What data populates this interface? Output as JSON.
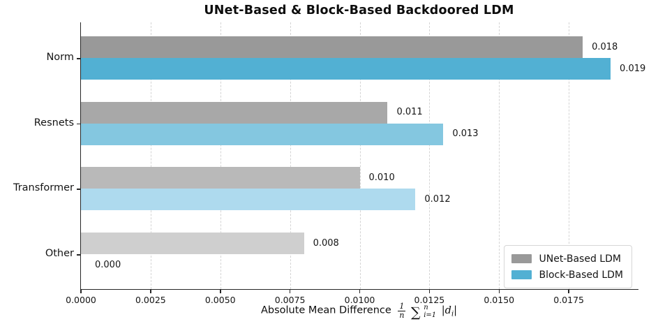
{
  "title": "UNet-Based & Block-Based Backdoored LDM",
  "chart_data": {
    "type": "bar",
    "orientation": "horizontal",
    "title": "UNet-Based & Block-Based Backdoored LDM",
    "categories": [
      "Norm",
      "Resnets",
      "Transformer",
      "Other"
    ],
    "series": [
      {
        "name": "UNet-Based LDM",
        "color": "#999999",
        "values": [
          0.018,
          0.011,
          0.01,
          0.008
        ],
        "bar_labels": [
          "0.018",
          "0.011",
          "0.010",
          "0.008"
        ],
        "bar_colors": [
          "#999999",
          "#a8a8a8",
          "#b9b9b9",
          "#cfcfcf"
        ]
      },
      {
        "name": "Block-Based LDM",
        "color": "#52b0d3",
        "values": [
          0.019,
          0.013,
          0.012,
          0.0
        ],
        "bar_labels": [
          "0.019",
          "0.013",
          "0.012",
          "0.000"
        ],
        "bar_colors": [
          "#52b0d3",
          "#84c7e0",
          "#aedaee",
          "#ffffff"
        ]
      }
    ],
    "x_ticks": [
      "0.0000",
      "0.0025",
      "0.0050",
      "0.0075",
      "0.0100",
      "0.0125",
      "0.0150",
      "0.0175"
    ],
    "xlim": [
      0,
      0.02
    ],
    "grid": "vertical-dashed",
    "legend_position": "lower right",
    "xlabel": {
      "prefix": "Absolute Mean Difference",
      "frac_num": "1",
      "frac_den": "n",
      "sum_symbol": "∑",
      "sum_sup": "n",
      "sum_sub": "i=1",
      "term_open": "|d",
      "term_sub": "i",
      "term_close": "|"
    }
  }
}
